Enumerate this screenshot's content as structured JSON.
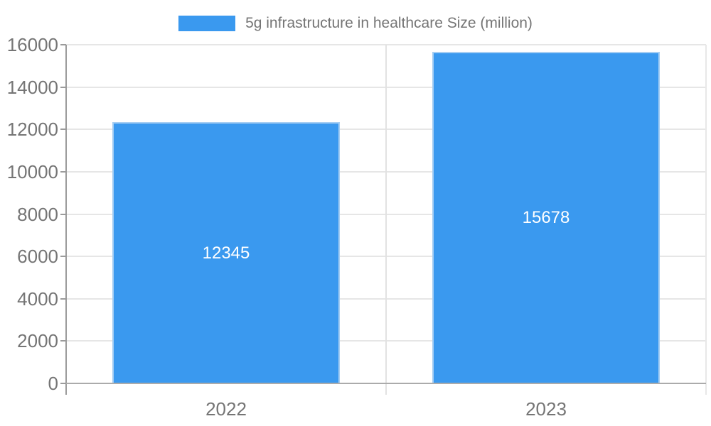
{
  "chart_data": {
    "type": "bar",
    "title": "5g infrastructure in healthcare Size (million)",
    "legend_position": "top",
    "categories": [
      "2022",
      "2023"
    ],
    "values": [
      12345,
      15678
    ],
    "value_labels": [
      "12345",
      "15678"
    ],
    "series": [
      {
        "name": "5g infrastructure in healthcare Size (million)",
        "values": [
          12345,
          15678
        ]
      }
    ],
    "xlabel": "",
    "ylabel": "",
    "ylim": [
      0,
      16000
    ],
    "y_ticks": [
      0,
      2000,
      4000,
      6000,
      8000,
      10000,
      12000,
      14000,
      16000
    ],
    "grid": true,
    "colors": {
      "bar": "#3A99EF",
      "bar_value_text": "#FFFFFF",
      "axis_text": "#757575",
      "gridline": "#E6E6E6",
      "separator_line": "#E2E2E2",
      "right_border": "#E8E8E8",
      "axis_line": "#9B9B9B",
      "baseline": "#ABABAB",
      "background": "#FFFFFF"
    }
  }
}
